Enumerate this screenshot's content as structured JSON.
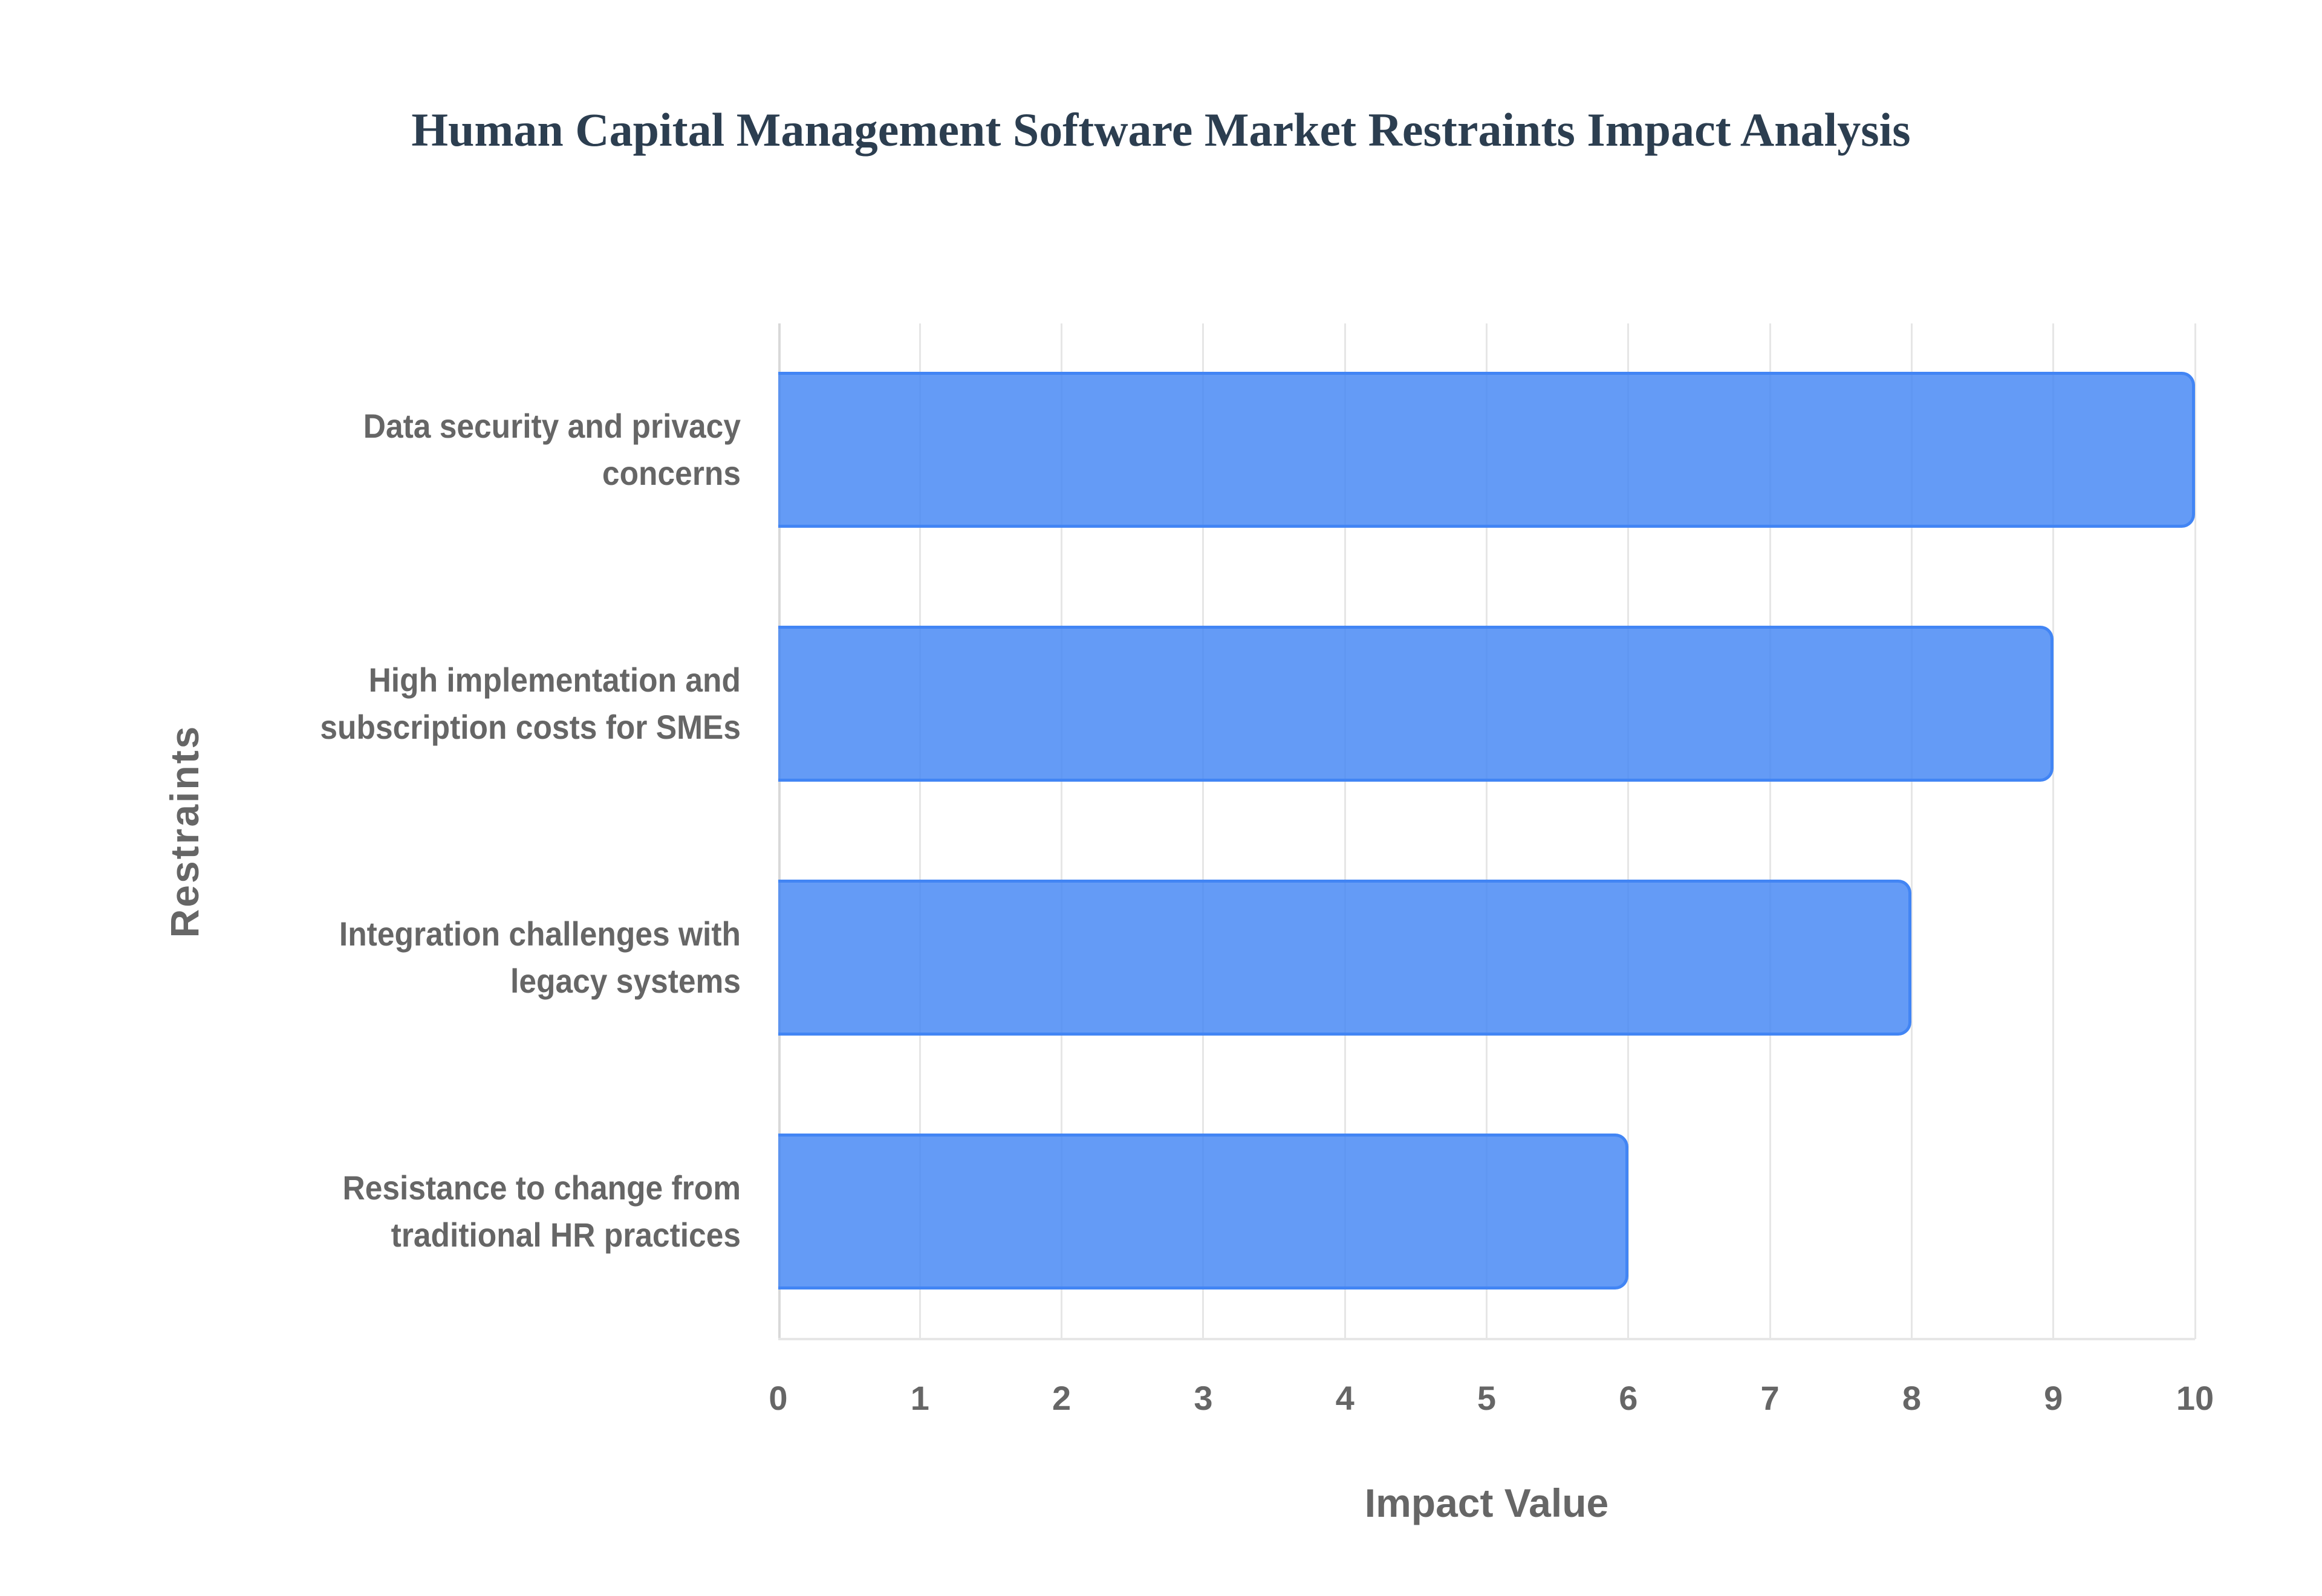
{
  "title": "Human Capital Management Software Market Restraints Impact Analysis",
  "x_axis": {
    "title": "Impact Value",
    "ticks": [
      "0",
      "1",
      "2",
      "3",
      "4",
      "5",
      "6",
      "7",
      "8",
      "9",
      "10"
    ]
  },
  "y_axis": {
    "title": "Restraints",
    "labels": [
      [
        "Data security and privacy",
        "concerns"
      ],
      [
        "High implementation and",
        "subscription costs for SMEs"
      ],
      [
        "Integration challenges with",
        "legacy systems"
      ],
      [
        "Resistance to change from",
        "traditional HR practices"
      ]
    ]
  },
  "colors": {
    "bar_fill": "#6199f5",
    "bar_border": "#4285f4",
    "text": "#666666",
    "title": "#2c3e50",
    "grid": "#e6e6e6"
  },
  "chart_data": {
    "type": "bar",
    "orientation": "horizontal",
    "title": "Human Capital Management Software Market Restraints Impact Analysis",
    "categories": [
      "Data security and privacy concerns",
      "High implementation and subscription costs for SMEs",
      "Integration challenges with legacy systems",
      "Resistance to change from traditional HR practices"
    ],
    "values": [
      10,
      9,
      8,
      6
    ],
    "xlabel": "Impact Value",
    "ylabel": "Restraints",
    "xlim": [
      0,
      10
    ],
    "grid": true,
    "legend": "none"
  }
}
